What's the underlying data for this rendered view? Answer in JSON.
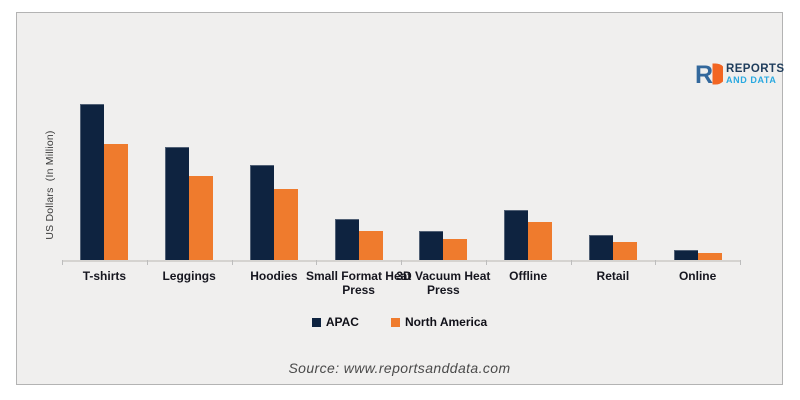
{
  "page": {
    "background": "#ffffff"
  },
  "panel": {
    "background": "#f0efee",
    "border_color": "#b3b3b3"
  },
  "logo": {
    "name": "Reports and Data",
    "line1": "REPORTS",
    "line2": "AND DATA",
    "line1_color": "#1f3d5c",
    "line2_color": "#2aa9e0",
    "icon_blue": "#33689c",
    "icon_orange": "#f26522"
  },
  "chart_data": {
    "type": "bar",
    "title": "",
    "xlabel": "",
    "ylabel": "US Dollars  (In Million)",
    "categories": [
      "T-shirts",
      "Leggings",
      "Hoodies",
      "Small Format Heat Press",
      "3D Vacuum Heat Press",
      "Offline",
      "Retail",
      "Online"
    ],
    "series": [
      {
        "name": "APAC",
        "color": "#0e2340",
        "values": [
          156,
          113,
          95,
          41,
          29,
          50,
          25,
          10
        ]
      },
      {
        "name": "North America",
        "color": "#ef7b2d",
        "values": [
          116,
          84,
          71,
          29,
          21,
          38,
          18,
          7
        ]
      }
    ],
    "ylim": [
      0,
      200
    ],
    "value_units": "relative estimate (axis shows no numeric tick labels)",
    "grid": false,
    "legend_position": "bottom-center",
    "axis_line_color": "#d5d3d0",
    "tick_color": "#bdbdbd"
  },
  "source": {
    "label": "Source: www.reportsanddata.com"
  }
}
